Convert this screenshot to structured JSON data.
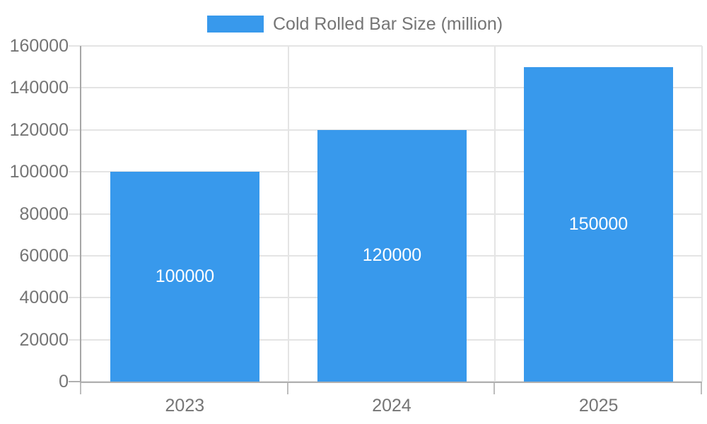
{
  "legend": {
    "label": "Cold Rolled Bar Size (million)"
  },
  "chart_data": {
    "type": "bar",
    "title": "Cold Rolled Bar Size (million)",
    "categories": [
      "2023",
      "2024",
      "2025"
    ],
    "values": [
      100000,
      120000,
      150000
    ],
    "bar_labels": [
      "100000",
      "120000",
      "150000"
    ],
    "ytick_labels": [
      "0",
      "20000",
      "40000",
      "60000",
      "80000",
      "100000",
      "120000",
      "140000",
      "160000"
    ],
    "ytick_interval": 20000,
    "ylim": [
      0,
      160000
    ],
    "xlabel": "",
    "ylabel": "",
    "grid": true,
    "legend_position": "top-center",
    "colors": {
      "bar": "#3899EC",
      "axis_label": "#757575",
      "legend_text": "#757575",
      "value_label": "#FFFFFF",
      "gridline": "#E4E4E4",
      "y_axis_line": "#A6A6A6",
      "baseline": "#B0B0B0",
      "x_tick": "#BDBDBD"
    }
  }
}
